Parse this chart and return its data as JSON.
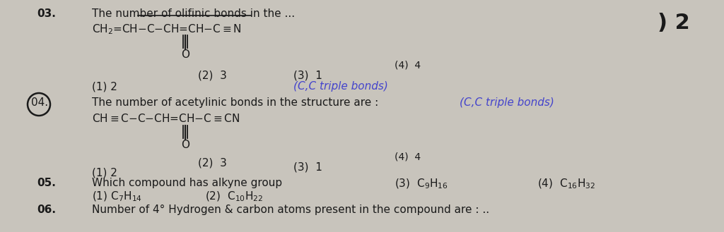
{
  "bg_color": "#c8c4bc",
  "text_color": "#1a1a1a",
  "fig_w": 10.24,
  "fig_h": 3.29,
  "dpi": 100,
  "q03_num": "03.",
  "q03_line1": "The number of olifinic bonds in the ...",
  "q03_underline_words": "olifinic bonds",
  "q04_num": "04.",
  "q04_line1": "The number of acetylinic bonds in the structure are :",
  "q04_annotation": "(C,C triple bonds)",
  "q03_annotation_text": "(C,C triple bonds)",
  "q05_num": "05.",
  "q05_text": "Which compound has alkyne group",
  "q06_num": "06.",
  "q06_text": "Number of 4° Hydrogen & carbon atoms present in the compound are : ..",
  "answer_right": ") 2",
  "opt_q03_1": "(1) 2",
  "opt_q03_2": "(2)  3",
  "opt_q03_3": "(3)  1",
  "opt_q03_4_label": "(4)  4",
  "opt_q04_1": "(1) 2",
  "opt_q04_2": "(2)  3",
  "opt_q04_3": "(3)  1",
  "opt_q04_4_label": "(4)  4",
  "opt_q05_1": "(1) C$_7$H$_{14}$",
  "opt_q05_2": "(2)  C$_{10}$H$_{22}$",
  "opt_q05_3": "(3)  C$_9$H$_{16}$",
  "opt_q05_4": "(4)  C$_{16}$H$_{32}$",
  "annotation_color": "#4444cc",
  "q04_label_color": "#333333"
}
